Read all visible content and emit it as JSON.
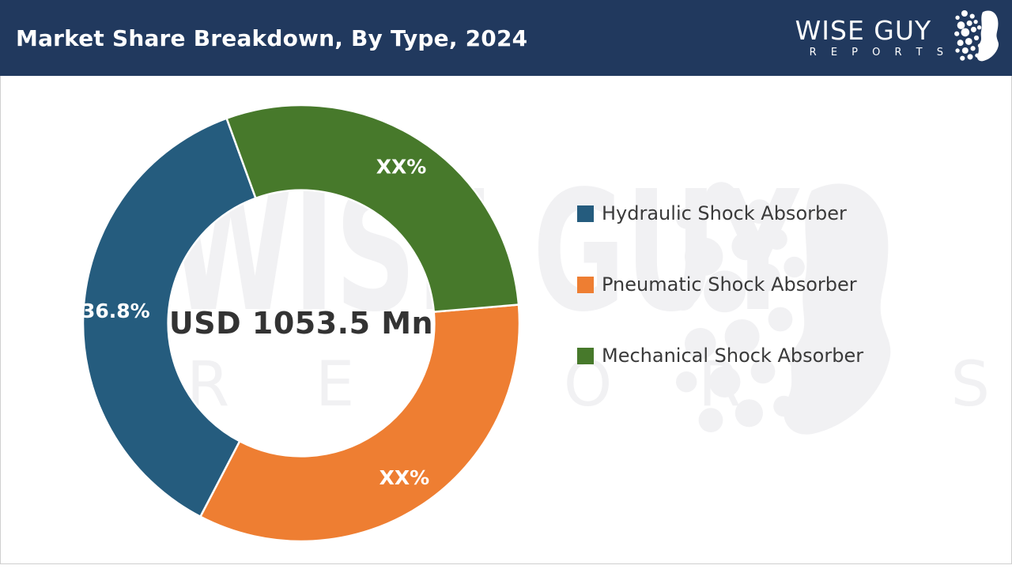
{
  "header": {
    "title": "Market Share Breakdown, By Type, 2024",
    "bg_color": "#21395E",
    "logo": {
      "line1": "WISE GUY",
      "line2": "R E P O R T S"
    }
  },
  "watermark": {
    "line1": "WISE GUY",
    "line2": "R E P O R T S"
  },
  "chart_data": {
    "type": "pie",
    "subtype": "donut",
    "title": "Market Share Breakdown, By Type, 2024",
    "center_label": "USD 1053.5 Mn",
    "start_angle_deg": 110,
    "counterclockwise": true,
    "inner_radius_ratio": 0.61,
    "legend_position": "right",
    "segments": [
      {
        "name": "Hydraulic Shock Absorber",
        "value": 36.8,
        "display": "36.8%",
        "color": "#255C7E"
      },
      {
        "name": "Pneumatic Shock Absorber",
        "value": 34.0,
        "display": "XX%",
        "color": "#EE7E32"
      },
      {
        "name": "Mechanical Shock Absorber",
        "value": 29.2,
        "display": "XX%",
        "color": "#47792B"
      }
    ]
  },
  "legend": {
    "items": [
      {
        "label": "Hydraulic Shock Absorber",
        "color": "#255C7E"
      },
      {
        "label": "Pneumatic Shock Absorber",
        "color": "#EE7E32"
      },
      {
        "label": "Mechanical Shock Absorber",
        "color": "#47792B"
      }
    ]
  }
}
